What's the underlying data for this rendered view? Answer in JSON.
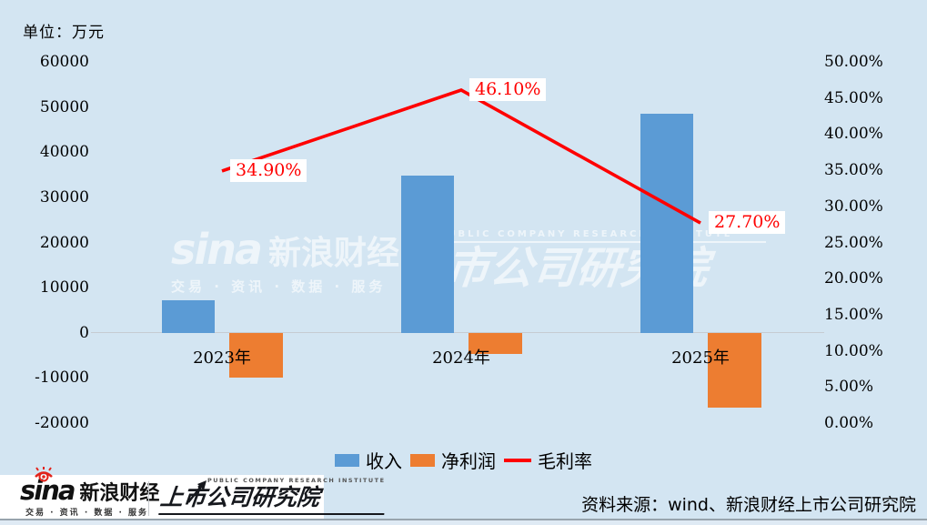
{
  "chart_data": {
    "type": "bar",
    "unit_label": "单位：万元",
    "categories": [
      "2023年",
      "2024年",
      "2025年"
    ],
    "series": [
      {
        "name": "收入",
        "kind": "bar",
        "color": "#5B9BD5",
        "values": [
          7300,
          34800,
          48600
        ]
      },
      {
        "name": "净利润",
        "kind": "bar",
        "color": "#ED7D31",
        "values": [
          -10000,
          -4700,
          -16500
        ]
      },
      {
        "name": "毛利率",
        "kind": "line",
        "color": "#FF0000",
        "axis": "right",
        "values": [
          34.9,
          46.1,
          27.7
        ],
        "labels": [
          "34.90%",
          "46.10%",
          "27.70%"
        ]
      }
    ],
    "left_axis": {
      "min": -20000,
      "max": 60000,
      "ticks": [
        "60000",
        "50000",
        "40000",
        "30000",
        "20000",
        "10000",
        "0",
        "-10000",
        "-20000"
      ]
    },
    "right_axis": {
      "min": 0,
      "max": 50,
      "ticks": [
        "50.00%",
        "45.00%",
        "40.00%",
        "35.00%",
        "30.00%",
        "25.00%",
        "20.00%",
        "15.00%",
        "10.00%",
        "5.00%",
        "0.00%"
      ]
    },
    "legend_position": "bottom",
    "grid": false
  },
  "watermarks": {
    "sina_latin": "sina",
    "sina_cn": "新浪财经",
    "tagline": "交易 · 资讯 · 数据 · 服务",
    "institute_caption": "PUBLIC COMPANY RESEARCH INSTITUTE",
    "institute_cn": "上市公司研究院"
  },
  "footer": {
    "sina_logo": {
      "latin": "sina",
      "cn": "新浪财经",
      "tagline": "交易 · 资讯 · 数据 · 服务"
    },
    "institute_logo": {
      "caption": "PUBLIC COMPANY RESEARCH INSTITUTE",
      "cn": "上市公司研究院"
    },
    "source": "资料来源：wind、新浪财经上市公司研究院"
  }
}
